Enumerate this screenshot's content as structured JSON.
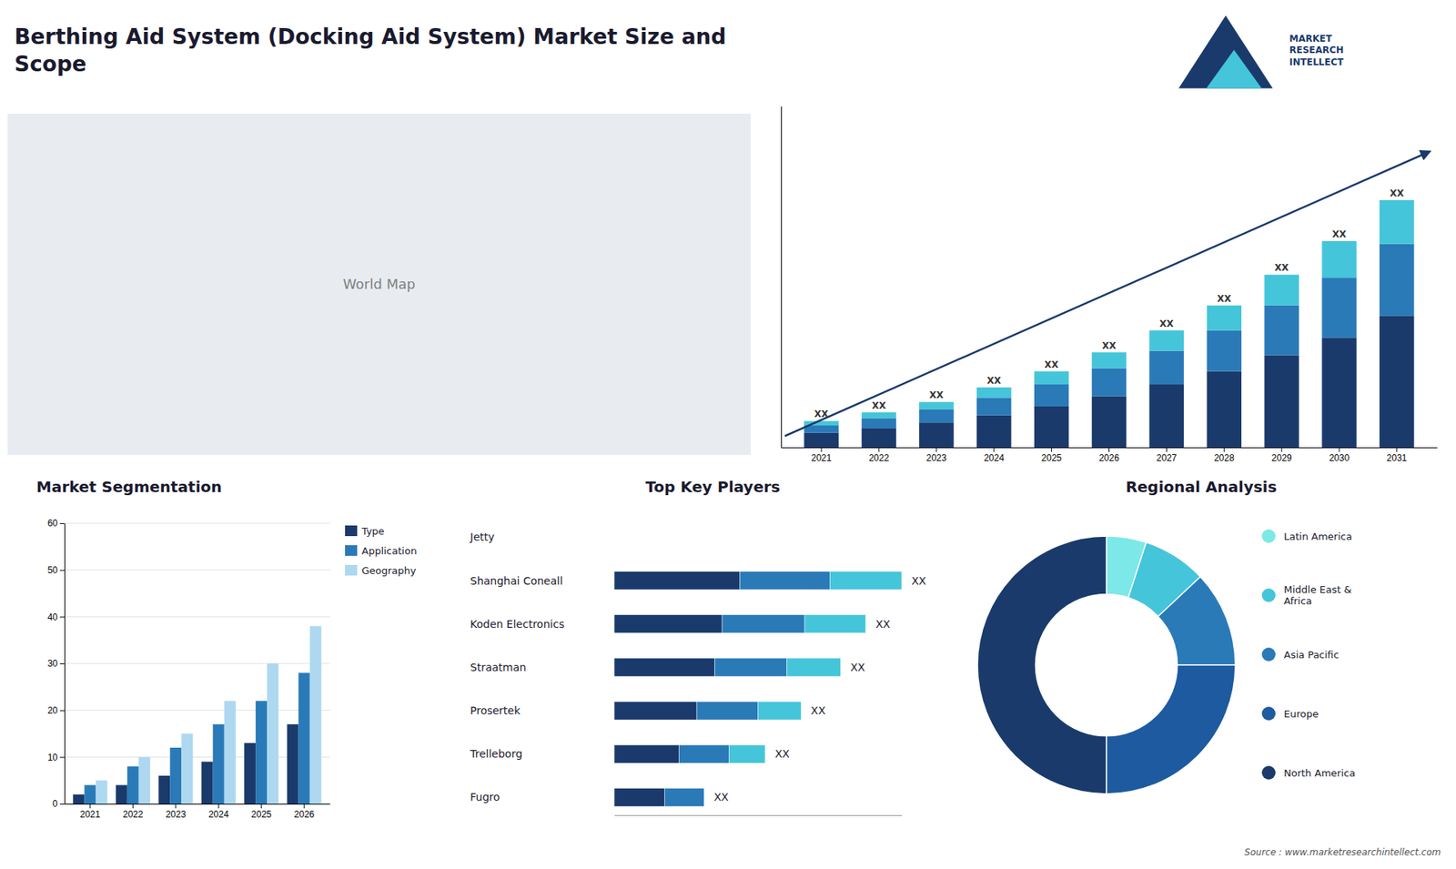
{
  "title": "Berthing Aid System (Docking Aid System) Market Size and\nScope",
  "annotations": [
    "World Map",
    "MARKET\nRESEARCH\nINTELLECT",
    "Source : www.marketresearchintellect.com"
  ],
  "chart_data": [
    {
      "type": "bar",
      "stacked": true,
      "categories": [
        "2021",
        "2022",
        "2023",
        "2024",
        "2025",
        "2026",
        "2027",
        "2028",
        "2029",
        "2030",
        "2031"
      ],
      "series": [
        {
          "color": "#1a3a6b",
          "values": [
            1.0,
            1.3,
            1.7,
            2.2,
            2.8,
            3.5,
            4.3,
            5.2,
            6.3,
            7.5,
            9.0
          ]
        },
        {
          "color": "#2a7ab8",
          "values": [
            0.5,
            0.7,
            0.9,
            1.2,
            1.5,
            1.9,
            2.3,
            2.8,
            3.4,
            4.1,
            4.9
          ]
        },
        {
          "color": "#45c5d9",
          "values": [
            0.3,
            0.4,
            0.5,
            0.7,
            0.9,
            1.1,
            1.4,
            1.7,
            2.1,
            2.5,
            3.0
          ],
          "value_labels": [
            "XX",
            "XX",
            "XX",
            "XX",
            "XX",
            "XX",
            "XX",
            "XX",
            "XX",
            "XX",
            "XX"
          ]
        }
      ],
      "ylim": [
        0,
        23.322
      ],
      "tick_labels": "x",
      "data_labels": true
    },
    {
      "type": "bar",
      "title": "Market Segmentation",
      "categories": [
        "2021",
        "2022",
        "2023",
        "2024",
        "2025",
        "2026"
      ],
      "series": [
        {
          "name": "Type",
          "color": "#1a3a6b",
          "values": [
            2,
            4,
            6,
            9,
            13,
            17
          ]
        },
        {
          "name": "Application",
          "color": "#2a7ab8",
          "values": [
            4,
            8,
            12,
            17,
            22,
            28
          ]
        },
        {
          "name": "Geography",
          "color": "#add8f0",
          "values": [
            5,
            10,
            15,
            22,
            30,
            38
          ]
        }
      ],
      "ylim": [
        0,
        60
      ],
      "yticks": [
        0,
        10,
        20,
        30,
        40,
        50,
        60
      ],
      "grid": true,
      "legend": "right"
    },
    {
      "type": "bar",
      "title": "Top Key Players",
      "orientation": "horizontal",
      "stacked": true,
      "categories": [
        "Jetty",
        "Shanghai Coneall",
        "Koden Electronics",
        "Straatman",
        "Prosertek",
        "Trelleborg",
        "Fugro"
      ],
      "series": [
        {
          "color": "#1a3a6b",
          "values": [
            0,
            3.5,
            3.0,
            2.8,
            2.3,
            1.8,
            1.4
          ]
        },
        {
          "color": "#2a7ab8",
          "values": [
            0,
            2.5,
            2.3,
            2.0,
            1.7,
            1.4,
            1.1
          ]
        },
        {
          "color": "#45c5d9",
          "values": [
            0,
            2.0,
            1.7,
            1.5,
            1.2,
            1.0,
            0.0
          ],
          "value_labels": [
            null,
            "XX",
            "XX",
            "XX",
            "XX",
            "XX",
            "XX"
          ]
        }
      ],
      "xlim": [
        0,
        8
      ],
      "tick_labels": "y",
      "data_labels": true
    },
    {
      "type": "pie",
      "title": "Regional Analysis",
      "categories": [
        "Latin America",
        "Middle East &\nAfrica",
        "Asia Pacific",
        "Europe",
        "North America"
      ],
      "values": [
        5,
        8,
        12,
        25,
        50
      ],
      "colors": [
        "#7de8e8",
        "#45c5d9",
        "#2a7ab8",
        "#1e5aa0",
        "#1a3a6b"
      ],
      "legend": "right"
    }
  ]
}
